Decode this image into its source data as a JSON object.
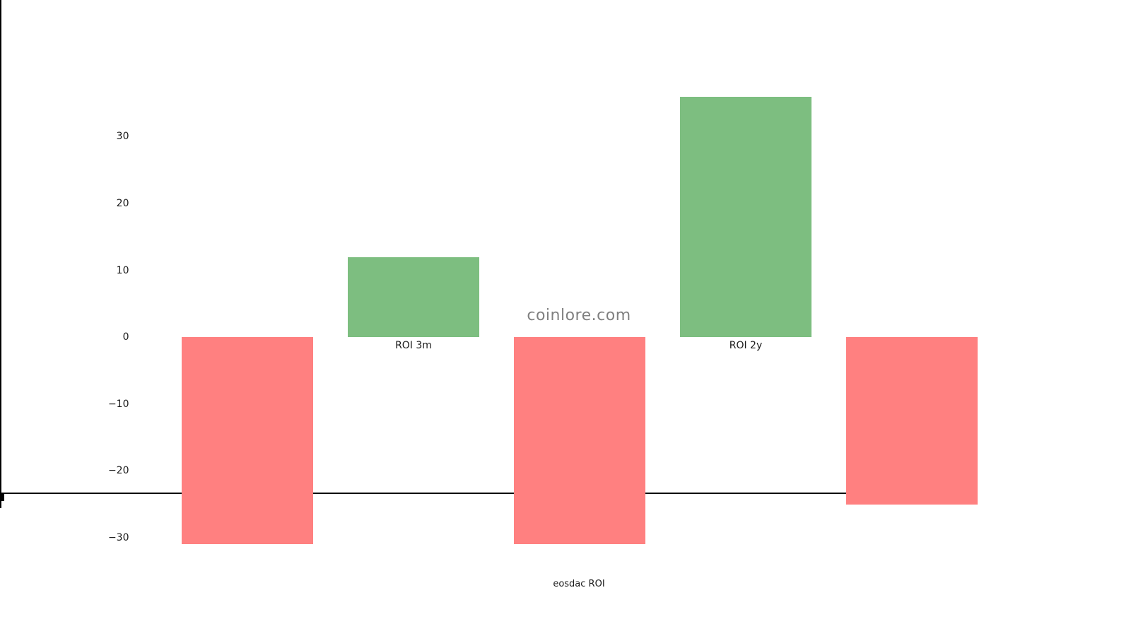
{
  "chart_data": {
    "type": "bar",
    "title": "eosdac ROI",
    "watermark": "coinlore.com",
    "bars": [
      {
        "label": "",
        "value": -31
      },
      {
        "label": "ROI 3m",
        "value": 12
      },
      {
        "label": "",
        "value": -31
      },
      {
        "label": "ROI 2y",
        "value": 36
      },
      {
        "label": "",
        "value": -25
      }
    ],
    "y_ticks": [
      {
        "label": "30",
        "value": 30
      },
      {
        "label": "20",
        "value": 20
      },
      {
        "label": "10",
        "value": 10
      },
      {
        "label": "0",
        "value": 0
      },
      {
        "label": "−10",
        "value": -10
      },
      {
        "label": "−20",
        "value": -20
      },
      {
        "label": "−30",
        "value": -30
      }
    ],
    "ylim": [
      -34.35,
      39.35
    ],
    "grid": false,
    "legend": null,
    "colors": {
      "positive": "#7dbe80",
      "negative": "#ff8080",
      "axis": "#000000",
      "text": "#1a1a1a",
      "watermark": "#808080"
    }
  }
}
